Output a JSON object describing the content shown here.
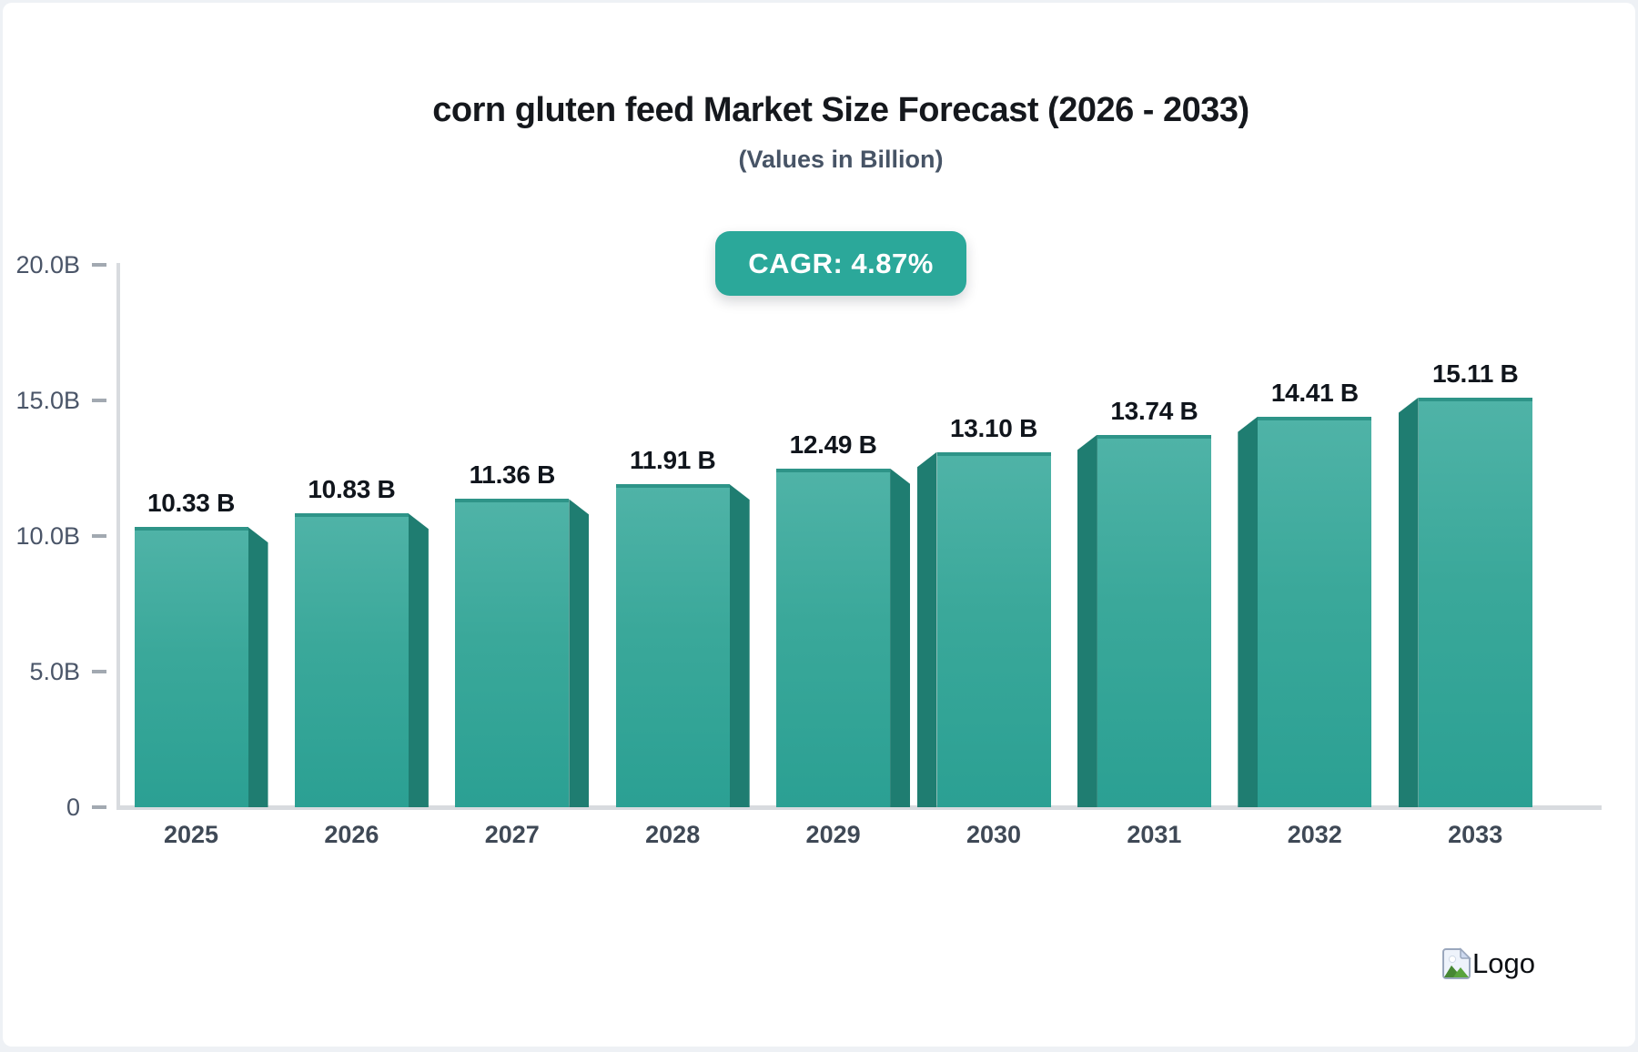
{
  "title": "corn gluten feed Market Size Forecast (2026 - 2033)",
  "subtitle": "(Values in Billion)",
  "cagr_badge": "CAGR: 4.87%",
  "logo_alt_text": "Logo",
  "colors": {
    "bar_face_top": "#4fb3a7",
    "bar_face_bottom": "#2ba093",
    "bar_side": "#1f7d71",
    "bar_top_edge": "#2e9488",
    "badge_background": "#2ba89a",
    "axis_line": "#d8dbdf",
    "tick": "#a2a9b1",
    "y_label": "#4a5568",
    "x_label": "#3f4956",
    "value_label": "#10151c"
  },
  "chart_data": {
    "type": "bar",
    "title": "corn gluten feed Market Size Forecast (2026 - 2033)",
    "subtitle": "(Values in Billion)",
    "annotation": "CAGR: 4.87%",
    "categories": [
      "2025",
      "2026",
      "2027",
      "2028",
      "2029",
      "2030",
      "2031",
      "2032",
      "2033"
    ],
    "values": [
      10.33,
      10.83,
      11.36,
      11.91,
      12.49,
      13.1,
      13.74,
      14.41,
      15.11
    ],
    "value_labels": [
      "10.33 B",
      "10.83 B",
      "11.36 B",
      "11.91 B",
      "12.49 B",
      "13.10 B",
      "13.74 B",
      "14.41 B",
      "15.11 B"
    ],
    "ylim": [
      0,
      20
    ],
    "yticks": [
      {
        "value": 20,
        "label": "20.0B"
      },
      {
        "value": 15,
        "label": "15.0B"
      },
      {
        "value": 10,
        "label": "10.0B"
      },
      {
        "value": 5,
        "label": "5.0B"
      },
      {
        "value": 0,
        "label": "0"
      }
    ],
    "grid": false,
    "legend": false,
    "bar_style": "3d",
    "xlabel": "",
    "ylabel": ""
  }
}
